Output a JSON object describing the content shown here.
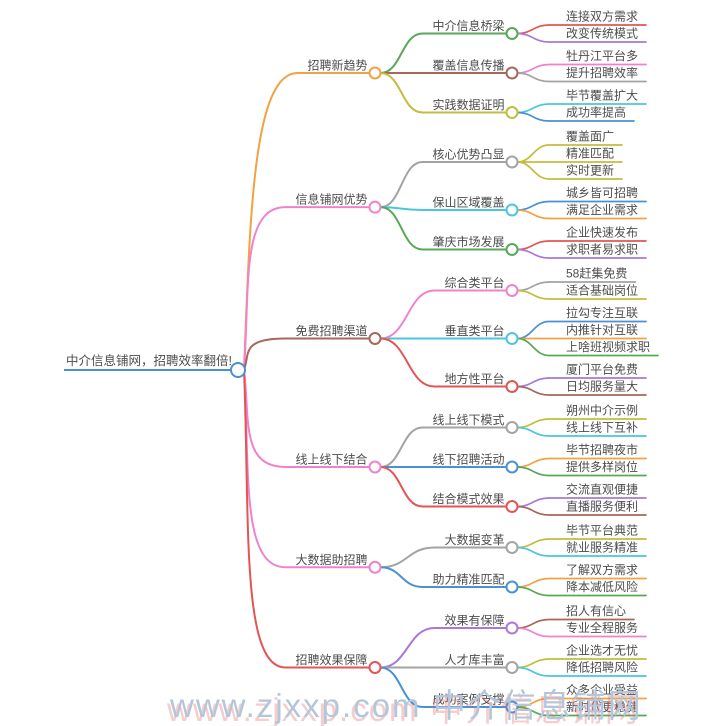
{
  "background": "#ffffff",
  "root": {
    "label": "中介信息铺网，招聘效率翻倍!",
    "color": "#4a90d5",
    "text_color": "#444444"
  },
  "watermark": {
    "text": "www.zjxxp.com 中介信息铺网",
    "color": "#b3c6da",
    "shadow_color": "#e06a6a"
  },
  "branches": [
    {
      "label": "招聘新趋势",
      "color": "#f2a242",
      "children": [
        {
          "label": "中介信息桥梁",
          "color": "#58a858",
          "leaves": [
            {
              "label": "连接双方需求",
              "color": "#e25555"
            },
            {
              "label": "改变传统模式",
              "color": "#a879d8"
            }
          ]
        },
        {
          "label": "覆盖信息传播",
          "color": "#a5685a",
          "leaves": [
            {
              "label": "牡丹江平台多",
              "color": "#ef82cd"
            },
            {
              "label": "提升招聘效率",
              "color": "#a3a3a3"
            }
          ]
        },
        {
          "label": "实践数据证明",
          "color": "#c2bd3d",
          "leaves": [
            {
              "label": "毕节覆盖扩大",
              "color": "#4cc5de"
            },
            {
              "label": "成功率提高",
              "color": "#4a90d5"
            }
          ]
        }
      ]
    },
    {
      "label": "信息铺网优势",
      "color": "#ef82cd",
      "children": [
        {
          "label": "核心优势凸显",
          "color": "#a3a3a3",
          "leaves": [
            {
              "label": "覆盖面广",
              "color": "#c2bd3d"
            },
            {
              "label": "精准匹配",
              "color": "#c2bd3d"
            },
            {
              "label": "实时更新",
              "color": "#c2bd3d"
            }
          ]
        },
        {
          "label": "保山区域覆盖",
          "color": "#4cc5de",
          "leaves": [
            {
              "label": "城乡皆可招聘",
              "color": "#4a90d5"
            },
            {
              "label": "满足企业需求",
              "color": "#f2a242"
            }
          ]
        },
        {
          "label": "肇庆市场发展",
          "color": "#58a858",
          "leaves": [
            {
              "label": "企业快速发布",
              "color": "#e25555"
            },
            {
              "label": "求职者易求职",
              "color": "#a879d8"
            }
          ]
        }
      ]
    },
    {
      "label": "免费招聘渠道",
      "color": "#a5685a",
      "children": [
        {
          "label": "综合类平台",
          "color": "#ef82cd",
          "leaves": [
            {
              "label": "58赶集免费",
              "color": "#a3a3a3"
            },
            {
              "label": "适合基础岗位",
              "color": "#c2bd3d"
            }
          ]
        },
        {
          "label": "垂直类平台",
          "color": "#4cc5de",
          "leaves": [
            {
              "label": "拉勾专注互联",
              "color": "#4a90d5"
            },
            {
              "label": "内推针对互联",
              "color": "#f2a242"
            },
            {
              "label": "上啥班视频求职",
              "color": "#58a858"
            }
          ]
        },
        {
          "label": "地方性平台",
          "color": "#e25555",
          "leaves": [
            {
              "label": "厦门平台免费",
              "color": "#a879d8"
            },
            {
              "label": "日均服务量大",
              "color": "#a5685a"
            }
          ]
        }
      ]
    },
    {
      "label": "线上线下结合",
      "color": "#ef82cd",
      "children": [
        {
          "label": "线上线下模式",
          "color": "#a3a3a3",
          "leaves": [
            {
              "label": "朔州中介示例",
              "color": "#c2bd3d"
            },
            {
              "label": "线上线下互补",
              "color": "#4cc5de"
            }
          ]
        },
        {
          "label": "线下招聘活动",
          "color": "#4a90d5",
          "leaves": [
            {
              "label": "毕节招聘夜市",
              "color": "#f2a242"
            },
            {
              "label": "提供多样岗位",
              "color": "#58a858"
            }
          ]
        },
        {
          "label": "结合模式效果",
          "color": "#e25555",
          "leaves": [
            {
              "label": "交流直观便捷",
              "color": "#a879d8"
            },
            {
              "label": "直播服务便利",
              "color": "#a5685a"
            }
          ]
        }
      ]
    },
    {
      "label": "大数据助招聘",
      "color": "#ef82cd",
      "children": [
        {
          "label": "大数据变革",
          "color": "#a3a3a3",
          "leaves": [
            {
              "label": "毕节平台典范",
              "color": "#c2bd3d"
            },
            {
              "label": "就业服务精准",
              "color": "#4cc5de"
            }
          ]
        },
        {
          "label": "助力精准匹配",
          "color": "#4a90d5",
          "leaves": [
            {
              "label": "了解双方需求",
              "color": "#f2a242"
            },
            {
              "label": "降本减低风险",
              "color": "#58a858"
            }
          ]
        }
      ]
    },
    {
      "label": "招聘效果保障",
      "color": "#e25555",
      "children": [
        {
          "label": "效果有保障",
          "color": "#a879d8",
          "leaves": [
            {
              "label": "招人有信心",
              "color": "#a5685a"
            },
            {
              "label": "专业全程服务",
              "color": "#ef82cd"
            }
          ]
        },
        {
          "label": "人才库丰富",
          "color": "#a3a3a3",
          "leaves": [
            {
              "label": "企业选才无忧",
              "color": "#c2bd3d"
            },
            {
              "label": "降低招聘风险",
              "color": "#4cc5de"
            }
          ]
        },
        {
          "label": "成功案例支撑",
          "color": "#4a90d5",
          "leaves": [
            {
              "label": "众多企业受益",
              "color": "#f2a242"
            },
            {
              "label": "新时代更稳健",
              "color": "#58a858"
            }
          ]
        }
      ]
    }
  ]
}
